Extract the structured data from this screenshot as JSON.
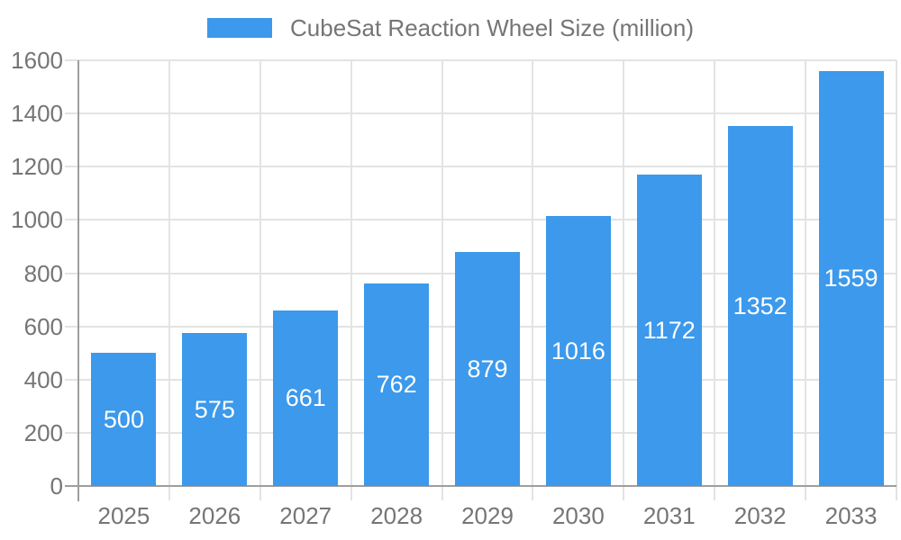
{
  "legend": {
    "label": "CubeSat Reaction Wheel Size (million)"
  },
  "chart_data": {
    "type": "bar",
    "title": "CubeSat Reaction Wheel Size (million)",
    "categories": [
      "2025",
      "2026",
      "2027",
      "2028",
      "2029",
      "2030",
      "2031",
      "2032",
      "2033"
    ],
    "values": [
      500,
      575,
      661,
      762,
      879,
      1016,
      1172,
      1352,
      1559
    ],
    "bar_labels": [
      "500",
      "575",
      "661",
      "762",
      "879",
      "1016",
      "1172",
      "1352",
      "1559"
    ],
    "xlabel": "",
    "ylabel": "",
    "ylim": [
      0,
      1600
    ],
    "ytick_step": 200,
    "ytick_labels": [
      "0",
      "200",
      "400",
      "600",
      "800",
      "1000",
      "1200",
      "1400",
      "1600"
    ],
    "grid": true,
    "legend_position": "top-center",
    "colors": {
      "bar": "#3C99EB",
      "bar_label_text": "#FFFFFF",
      "axis_text": "#757575",
      "axis_line": "#9E9E9E",
      "gridline": "#E3E3E3",
      "background": "#FFFFFF"
    }
  }
}
